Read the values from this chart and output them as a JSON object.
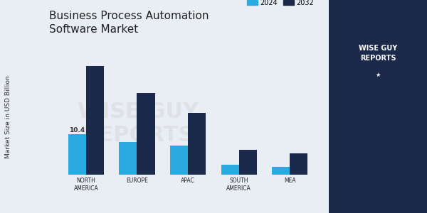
{
  "title": "Business Process Automation\nSoftware Market",
  "ylabel": "Market Size in USD Billion",
  "categories": [
    "NORTH\nAMERICA",
    "EUROPE",
    "APAC",
    "SOUTH\nAMERICA",
    "MEA"
  ],
  "values_2024": [
    10.4,
    8.5,
    7.5,
    2.5,
    2.0
  ],
  "values_2032": [
    28.0,
    21.0,
    16.0,
    6.5,
    5.5
  ],
  "color_2024": "#29ABE2",
  "color_2032": "#1B2A4A",
  "annotation_value": "10.4",
  "bg_color": "#E8EEF4",
  "right_panel_color": "#1B2A4A",
  "legend_labels": [
    "2024",
    "2032"
  ],
  "title_fontsize": 11,
  "ylabel_fontsize": 8
}
